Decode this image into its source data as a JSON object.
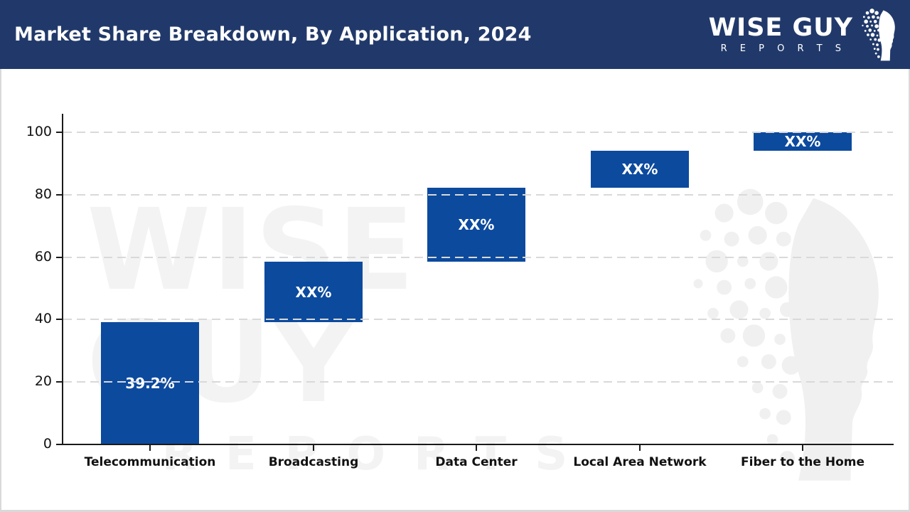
{
  "header": {
    "title": "Market Share Breakdown, By Application, 2024"
  },
  "logo": {
    "line1": "WISE GUY",
    "line2": "R E P O R T S"
  },
  "watermark": {
    "line1": "WISE GUY",
    "line2": "REPORTS"
  },
  "chart_data": {
    "type": "bar",
    "subtype": "waterfall",
    "title": "Market Share Breakdown, By Application, 2024",
    "categories": [
      "Telecommunication",
      "Broadcasting",
      "Data Center",
      "Local Area Network",
      "Fiber to the Home"
    ],
    "segments": [
      {
        "category": "Telecommunication",
        "start": 0,
        "end": 39.2,
        "label": "39.2%"
      },
      {
        "category": "Broadcasting",
        "start": 39.2,
        "end": 58.5,
        "label": "XX%"
      },
      {
        "category": "Data Center",
        "start": 58.5,
        "end": 82.3,
        "label": "XX%"
      },
      {
        "category": "Local Area Network",
        "start": 82.3,
        "end": 94.0,
        "label": "XX%"
      },
      {
        "category": "Fiber to the Home",
        "start": 94.0,
        "end": 100.0,
        "label": "XX%"
      }
    ],
    "yticks": [
      0,
      20,
      40,
      60,
      80,
      100
    ],
    "ylim": [
      0,
      105
    ],
    "xlabel": "",
    "ylabel": "",
    "grid": "dashed-horizontal",
    "legend": "none"
  },
  "colors": {
    "header_bg": "#21396a",
    "bar": "#0c4a9e",
    "bar_label": "#ffffff",
    "grid": "#d9d9d9",
    "axis": "#1a1a1a",
    "watermark": "#f3f3f3"
  }
}
